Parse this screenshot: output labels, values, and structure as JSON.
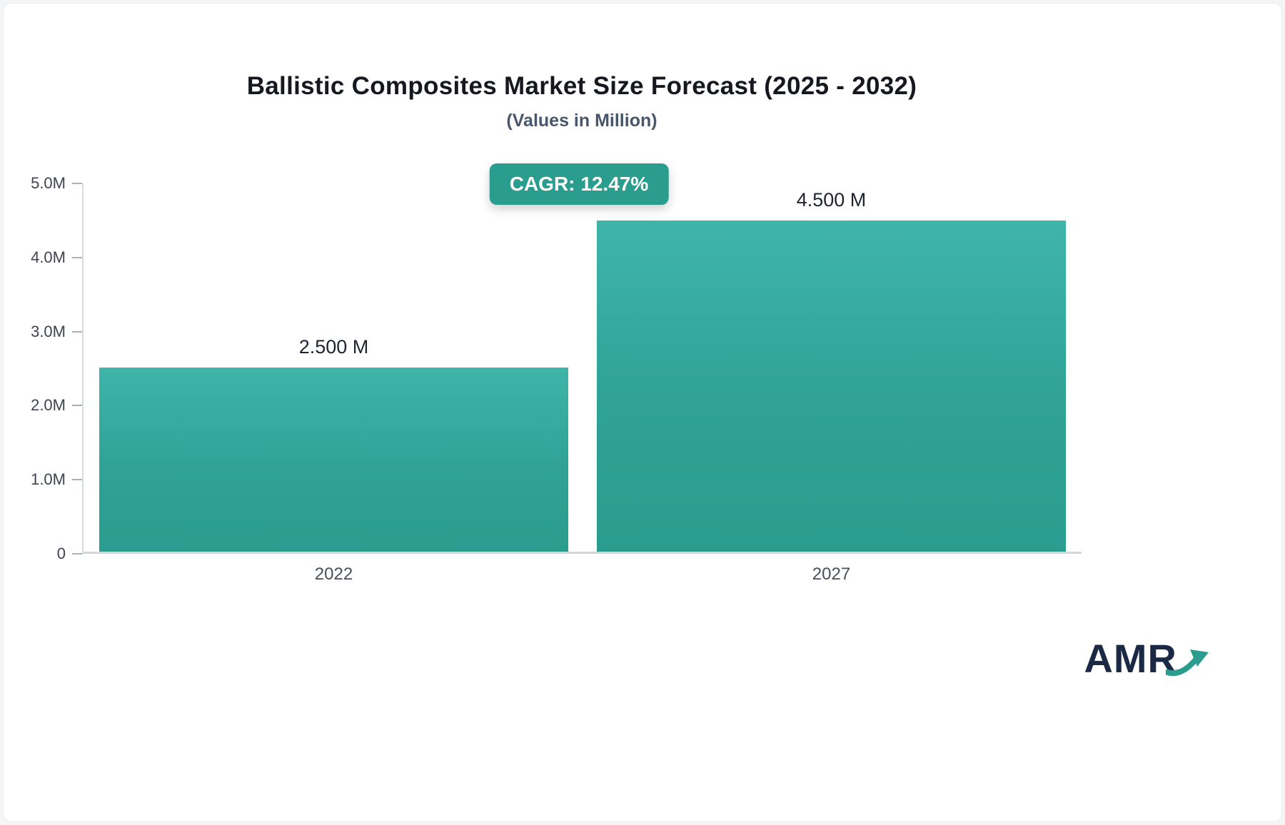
{
  "title": "Ballistic Composites Market Size Forecast (2025 - 2032)",
  "subtitle": "(Values in Million)",
  "badge": {
    "label": "CAGR: 12.47%",
    "bg_color": "#2a9d8f",
    "text_color": "#ffffff"
  },
  "logo": {
    "text": "AMR",
    "arrow_color": "#2a9d8f",
    "text_color": "#1b2944"
  },
  "chart_data": {
    "type": "bar",
    "categories": [
      "2022",
      "2027"
    ],
    "values": [
      2.5,
      4.5
    ],
    "value_labels": [
      "2.500 M",
      "4.500 M"
    ],
    "title": "Ballistic Composites Market Size Forecast (2025 - 2032)",
    "subtitle": "(Values in Million)",
    "xlabel": "",
    "ylabel": "",
    "ylim": [
      0,
      5
    ],
    "y_ticks": [
      "0",
      "1.0M",
      "2.0M",
      "3.0M",
      "4.0M",
      "5.0M"
    ],
    "y_tick_values": [
      0,
      1,
      2,
      3,
      4,
      5
    ],
    "grid": false,
    "legend": false,
    "bar_color_top": "#3fb4a9",
    "bar_color_bottom": "#2a9d8f",
    "annotation": "CAGR: 12.47%"
  }
}
